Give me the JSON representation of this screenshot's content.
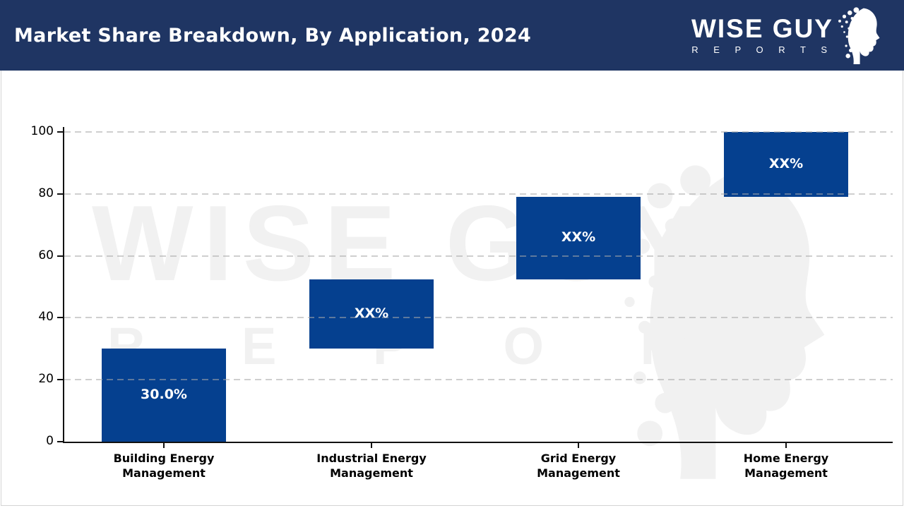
{
  "header": {
    "title": "Market Share Breakdown, By Application, 2024",
    "bg_color": "#1f3563",
    "logo": {
      "wordmark": "WISE GUY",
      "subtext": "R E P O R T S"
    }
  },
  "chart_data": {
    "type": "bar",
    "subtype": "waterfall",
    "title": "Market Share Breakdown, By Application, 2024",
    "xlabel": "",
    "ylabel": "",
    "ylim": [
      0,
      100
    ],
    "yticks": [
      0,
      20,
      40,
      60,
      80,
      100
    ],
    "grid": "horizontal dashed",
    "legend": "none",
    "bar_color": "#05408f",
    "categories": [
      "Building Energy Management",
      "Industrial Energy Management",
      "Grid Energy Management",
      "Home Energy Management"
    ],
    "segments": [
      {
        "category": "Building Energy Management",
        "start": 0,
        "end": 30,
        "label": "30.0%"
      },
      {
        "category": "Industrial Energy Management",
        "start": 30,
        "end": 52.5,
        "label": "XX%"
      },
      {
        "category": "Grid Energy Management",
        "start": 52.5,
        "end": 79,
        "label": "XX%"
      },
      {
        "category": "Home Energy Management",
        "start": 79,
        "end": 100,
        "label": "XX%"
      }
    ],
    "watermark": {
      "wordmark": "WISE GUY",
      "subtext": "R E P O R T S"
    }
  }
}
